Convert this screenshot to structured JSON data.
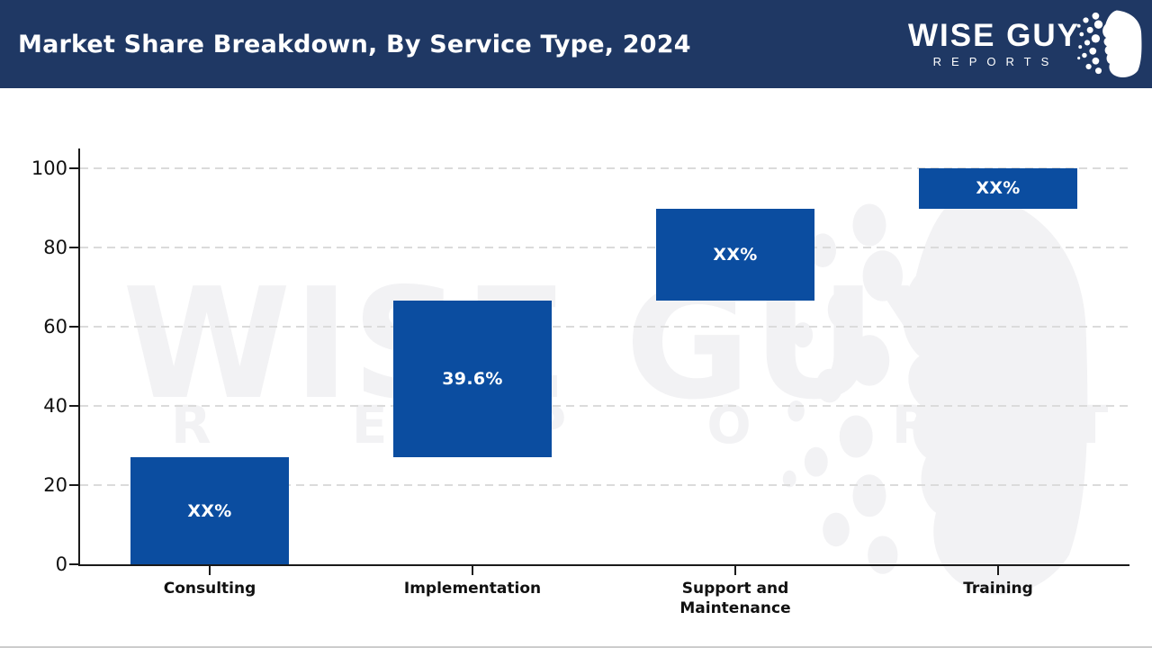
{
  "header": {
    "title": "Market Share Breakdown, By Service Type, 2024",
    "logo": {
      "name": "WISE GUY",
      "sub": "REPORTS"
    }
  },
  "watermark": {
    "name": "WISE GUY",
    "sub": "R E P O R T S"
  },
  "chart_data": {
    "type": "bar",
    "subtype": "waterfall (stacked percentage steps)",
    "title": "Market Share Breakdown, By Service Type, 2024",
    "categories": [
      "Consulting",
      "Implementation",
      "Support and Maintenance",
      "Training"
    ],
    "series": [
      {
        "name": "Consulting",
        "start": 0,
        "end": 27.0,
        "value_label": "XX%"
      },
      {
        "name": "Implementation",
        "start": 27.0,
        "end": 66.6,
        "value_label": "39.6%"
      },
      {
        "name": "Support and Maintenance",
        "start": 66.6,
        "end": 89.8,
        "value_label": "XX%"
      },
      {
        "name": "Training",
        "start": 89.8,
        "end": 100,
        "value_label": "XX%"
      }
    ],
    "ylim": [
      0,
      100
    ],
    "yticks": [
      "0",
      "20",
      "40",
      "60",
      "80",
      "100"
    ],
    "grid": "horizontal-dashed",
    "legend": "none",
    "bar_color": "#0B4DA0",
    "bar_label_color": "#FFFFFF"
  },
  "colors": {
    "header_bg": "#1F3864",
    "header_text": "#FFFFFF",
    "bar": "#0B4DA0",
    "grid_line": "#DBDBDB",
    "axis_line": "#1A1A1A",
    "watermark": "#F2F2F4"
  }
}
